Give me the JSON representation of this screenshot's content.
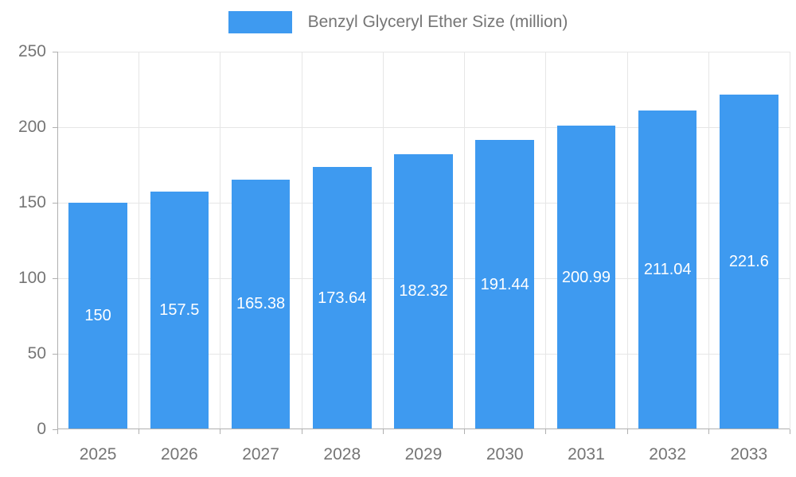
{
  "legend": {
    "label": "Benzyl Glyceryl Ether Size (million)"
  },
  "colors": {
    "bar": "#3e9af0",
    "axis": "#b0b0b0",
    "grid": "#e6e6e6",
    "text": "#757575",
    "value_label": "#ffffff"
  },
  "chart_data": {
    "type": "bar",
    "title": "Benzyl Glyceryl Ether Size (million)",
    "categories": [
      "2025",
      "2026",
      "2027",
      "2028",
      "2029",
      "2030",
      "2031",
      "2032",
      "2033"
    ],
    "values": [
      150,
      157.5,
      165.38,
      173.64,
      182.32,
      191.44,
      200.99,
      211.04,
      221.6
    ],
    "value_labels": [
      "150",
      "157.5",
      "165.38",
      "173.64",
      "182.32",
      "191.44",
      "200.99",
      "211.04",
      "221.6"
    ],
    "xlabel": "",
    "ylabel": "",
    "ylim": [
      0,
      250
    ],
    "yticks": [
      0,
      50,
      100,
      150,
      200,
      250
    ],
    "grid": true,
    "legend_position": "top",
    "bar_width_fraction": 0.72
  }
}
